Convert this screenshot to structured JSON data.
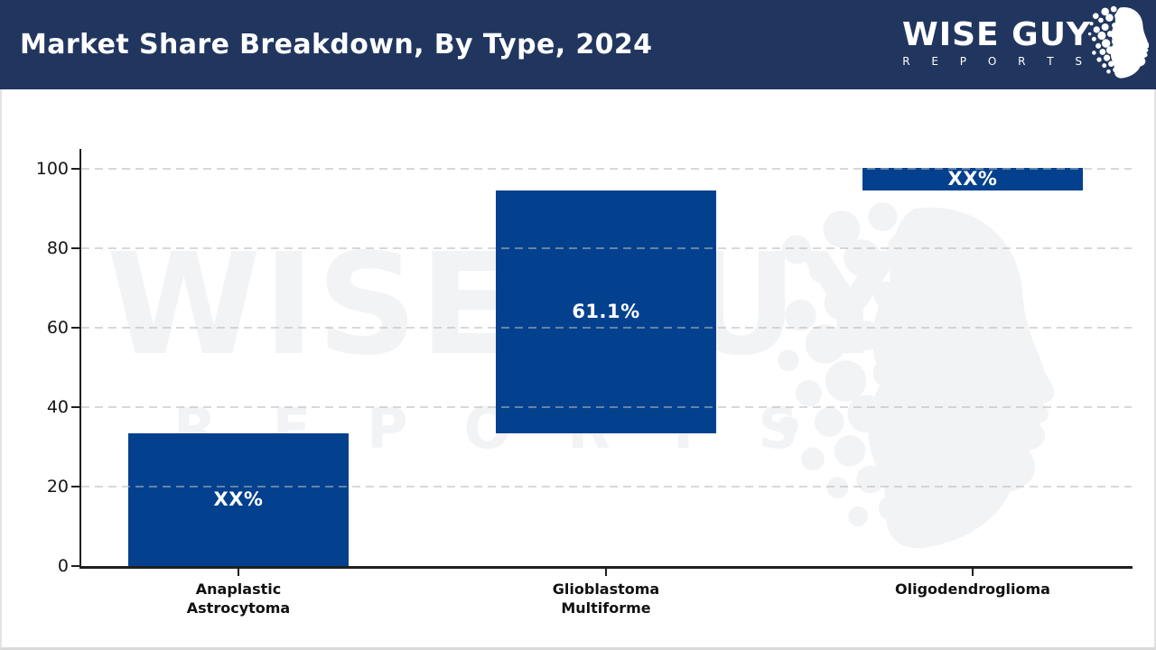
{
  "header": {
    "title": "Market Share Breakdown, By Type, 2024",
    "bg_color": "#21365f",
    "logo_line1": "WISE GUY",
    "logo_line2": "R E P O R T S"
  },
  "watermark": {
    "word1": "WISE GUY",
    "word2": "REPORTS"
  },
  "chart_data": {
    "type": "bar",
    "variant": "waterfall",
    "title": "Market Share Breakdown, By Type, 2024",
    "categories": [
      "Anaplastic Astrocytoma",
      "Glioblastoma Multiforme",
      "Oligodendroglioma"
    ],
    "bars": [
      {
        "category_lines": [
          "Anaplastic",
          "Astrocytoma"
        ],
        "start": 0,
        "end": 33.4,
        "label": "XX%"
      },
      {
        "category_lines": [
          "Glioblastoma",
          "Multiforme"
        ],
        "start": 33.4,
        "end": 94.5,
        "label": "61.1%"
      },
      {
        "category_lines": [
          "Oligodendroglioma"
        ],
        "start": 94.5,
        "end": 100.2,
        "label": "XX%"
      }
    ],
    "xlabel": "",
    "ylabel": "",
    "ylim": [
      0,
      105
    ],
    "yticks": [
      0,
      20,
      40,
      60,
      80,
      100
    ],
    "grid": {
      "axis": "y",
      "style": "dashed",
      "color": "#d8d8d8"
    },
    "bar_color": "#03418e",
    "bar_label_color": "#ffffff",
    "legend": "none"
  }
}
